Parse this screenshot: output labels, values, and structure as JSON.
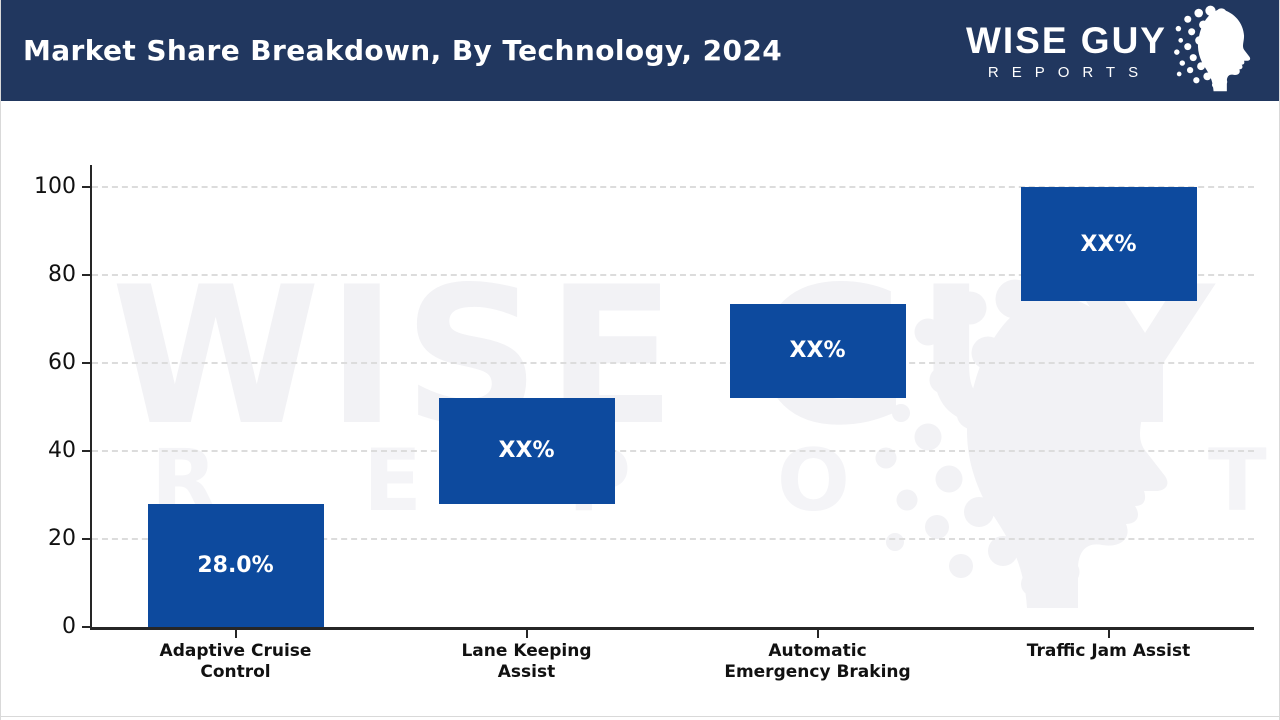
{
  "header": {
    "title": "Market Share Breakdown, By Technology, 2024",
    "logo": {
      "line1": "WISE GUY",
      "line2": "REPORTS"
    }
  },
  "watermark": {
    "line1": "WISE GUY",
    "line2": "R E P O R T S"
  },
  "chart_data": {
    "type": "bar",
    "subtype": "floating-waterfall-segments",
    "title": "Market Share Breakdown, By Technology, 2024",
    "categories": [
      "Adaptive Cruise Control",
      "Lane Keeping Assist",
      "Automatic Emergency Braking",
      "Traffic Jam Assist"
    ],
    "bars": [
      {
        "category_lines": [
          "Adaptive Cruise",
          "Control"
        ],
        "base": 0,
        "top": 28,
        "label": "28.0%"
      },
      {
        "category_lines": [
          "Lane Keeping",
          "Assist"
        ],
        "base": 28,
        "top": 52,
        "label": "XX%"
      },
      {
        "category_lines": [
          "Automatic",
          "Emergency Braking"
        ],
        "base": 52,
        "top": 73.5,
        "label": "XX%"
      },
      {
        "category_lines": [
          "Traffic Jam Assist"
        ],
        "base": 74,
        "top": 100,
        "label": "XX%"
      }
    ],
    "yticks": [
      0,
      20,
      40,
      60,
      80,
      100
    ],
    "ylim": [
      0,
      105
    ],
    "xlabel": "",
    "ylabel": "",
    "grid": "dashed-horizontal",
    "legend": "none",
    "colors": {
      "bar": "#0d4a9e",
      "bar_label": "#ffffff",
      "grid": "#dcdcdc",
      "axis": "#262626",
      "tick_label": "#111111",
      "header_bg": "#21375f",
      "watermark": "#f2f2f5"
    }
  }
}
